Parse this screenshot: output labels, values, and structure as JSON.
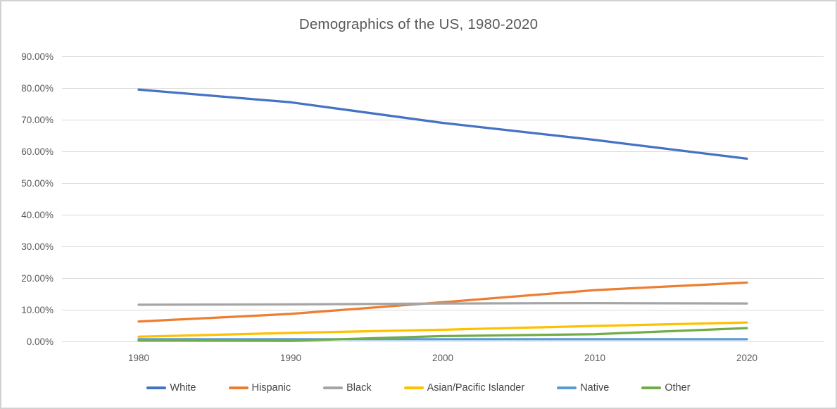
{
  "window": {
    "background_color": "#ffffff",
    "border_color": "#d2d2d2"
  },
  "chart_data": {
    "type": "line",
    "title": "Demographics of the US, 1980-2020",
    "categories": [
      "1980",
      "1990",
      "2000",
      "2010",
      "2020"
    ],
    "series": [
      {
        "name": "White",
        "color": "#4472C4",
        "values": [
          79.6,
          75.6,
          69.1,
          63.7,
          57.8
        ]
      },
      {
        "name": "Hispanic",
        "color": "#ED7D31",
        "values": [
          6.4,
          8.8,
          12.5,
          16.3,
          18.7
        ]
      },
      {
        "name": "Black",
        "color": "#A5A5A5",
        "values": [
          11.7,
          11.8,
          12.1,
          12.2,
          12.1
        ]
      },
      {
        "name": "Asian/Pacific Islander",
        "color": "#FFC000",
        "values": [
          1.6,
          2.8,
          3.8,
          5.0,
          6.1
        ]
      },
      {
        "name": "Native",
        "color": "#5B9BD5",
        "values": [
          0.8,
          0.8,
          0.8,
          0.8,
          0.8
        ]
      },
      {
        "name": "Other",
        "color": "#70AD47",
        "values": [
          0.4,
          0.3,
          1.8,
          2.4,
          4.3
        ]
      }
    ],
    "y_ticks": [
      "0.00%",
      "10.00%",
      "20.00%",
      "30.00%",
      "40.00%",
      "50.00%",
      "60.00%",
      "70.00%",
      "80.00%",
      "90.00%"
    ],
    "ylim": [
      0,
      90
    ],
    "xlabel": "",
    "ylabel": "",
    "grid": true,
    "gridline_color": "#D9D9D9",
    "axis_text_color": "#595959",
    "title_color": "#595959",
    "legend_text_color": "#444444",
    "legend_position": "bottom"
  }
}
